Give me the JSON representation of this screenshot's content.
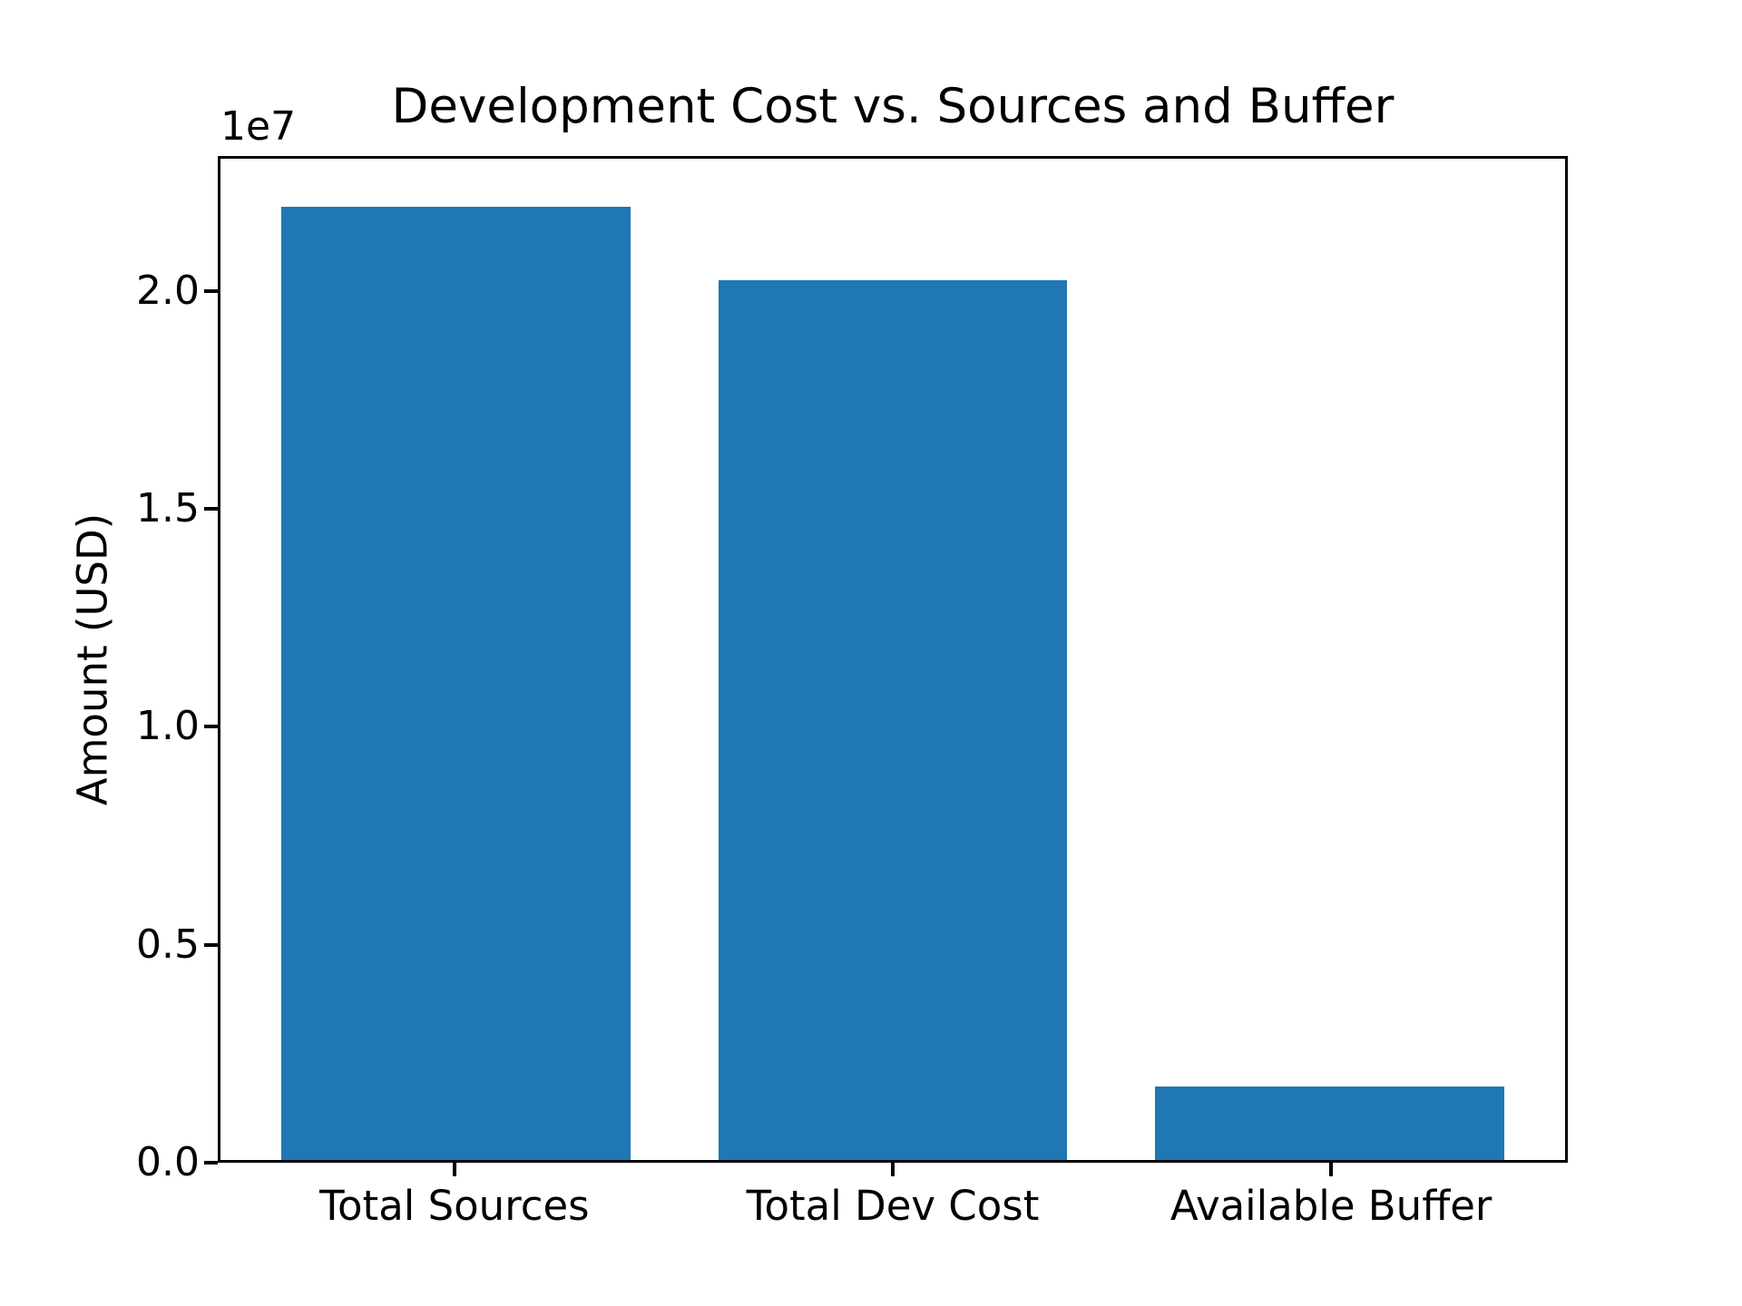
{
  "chart_data": {
    "type": "bar",
    "title": "Development Cost vs. Sources and Buffer",
    "xlabel": "",
    "ylabel": "Amount (USD)",
    "y_offset_label": "1e7",
    "categories": [
      "Total Sources",
      "Total Dev Cost",
      "Available Buffer"
    ],
    "values": [
      22000000,
      20300000,
      1700000
    ],
    "yticks": [
      0,
      5000000,
      10000000,
      15000000,
      20000000
    ],
    "ytick_labels": [
      "0.0",
      "0.5",
      "1.0",
      "1.5",
      "2.0"
    ],
    "ylim": [
      0,
      23100000
    ],
    "xlim": [
      -0.54,
      2.54
    ],
    "bar_width": 0.8,
    "bar_color": "#1f77b4",
    "grid": false,
    "legend_position": "none",
    "background_color": "#ffffff",
    "text_color": "#000000"
  }
}
